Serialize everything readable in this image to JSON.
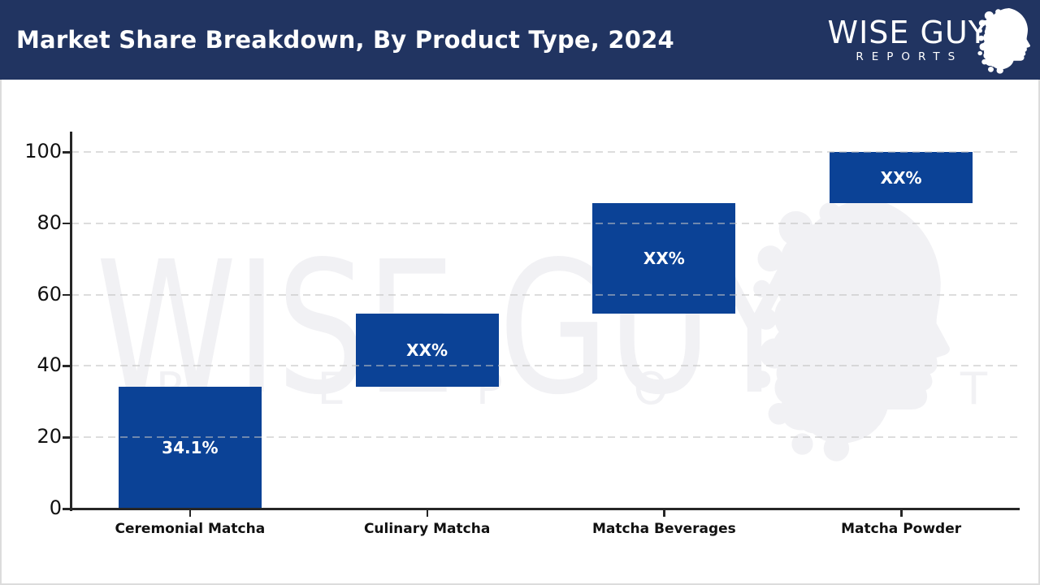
{
  "header": {
    "title": "Market Share Breakdown, By Product Type, 2024",
    "logo": {
      "line1": "WISE GUY",
      "line2": "REPORTS"
    }
  },
  "watermark": {
    "line1": "WISE GUY",
    "line2": "R E P O R T S"
  },
  "colors": {
    "header_bg": "#213461",
    "bar": "#0b4296",
    "axis": "#262626",
    "grid": "#c1c1c1",
    "watermark": "#f1f1f4",
    "bar_label": "#ffffff",
    "tick_label": "#111111"
  },
  "chart_data": {
    "type": "bar",
    "subtype": "waterfall",
    "title": "Market Share Breakdown, By Product Type, 2024",
    "xlabel": "",
    "ylabel": "",
    "categories": [
      "Ceremonial Matcha",
      "Culinary Matcha",
      "Matcha Beverages",
      "Matcha Powder"
    ],
    "bars": [
      {
        "category": "Ceremonial Matcha",
        "label": "34.1%",
        "start": 0,
        "end": 34.1
      },
      {
        "category": "Culinary Matcha",
        "label": "XX%",
        "start": 34.1,
        "end": 54.6
      },
      {
        "category": "Matcha Beverages",
        "label": "XX%",
        "start": 54.6,
        "end": 85.6
      },
      {
        "category": "Matcha Powder",
        "label": "XX%",
        "start": 85.6,
        "end": 100
      }
    ],
    "y_ticks": [
      0,
      20,
      40,
      60,
      80,
      100
    ],
    "ylim": [
      0,
      106
    ],
    "grid": "horizontal-dashed",
    "legend": "none"
  }
}
